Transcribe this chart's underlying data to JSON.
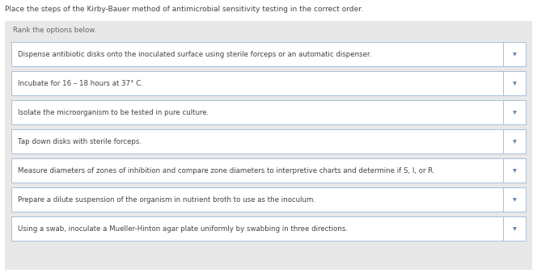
{
  "title": "Place the steps of the Kirby-Bauer method of antimicrobial sensitivity testing in the correct order.",
  "subtitle": "Rank the options below.",
  "items": [
    "Dispense antibiotic disks onto the inoculated surface using sterile forceps or an automatic dispenser.",
    "Incubate for 16 – 18 hours at 37° C.",
    "Isolate the microorganism to be tested in pure culture.",
    "Tap down disks with sterile forceps.",
    "Measure diameters of zones of inhibition and compare zone diameters to interpretive charts and determine if S, I, or R.",
    "Prepare a dilute suspension of the organism in nutrient broth to use as the inoculum.",
    "Using a swab, inoculate a Mueller-Hinton agar plate uniformly by swabbing in three directions."
  ],
  "bg_outer": "#ffffff",
  "bg_panel": "#e8e8e8",
  "box_fill": "#ffffff",
  "box_border": "#a8c0d8",
  "title_color": "#444444",
  "subtitle_color": "#666666",
  "text_color": "#444444",
  "arrow_color": "#6688aa",
  "title_fontsize": 6.5,
  "subtitle_fontsize": 6.2,
  "item_fontsize": 6.2
}
